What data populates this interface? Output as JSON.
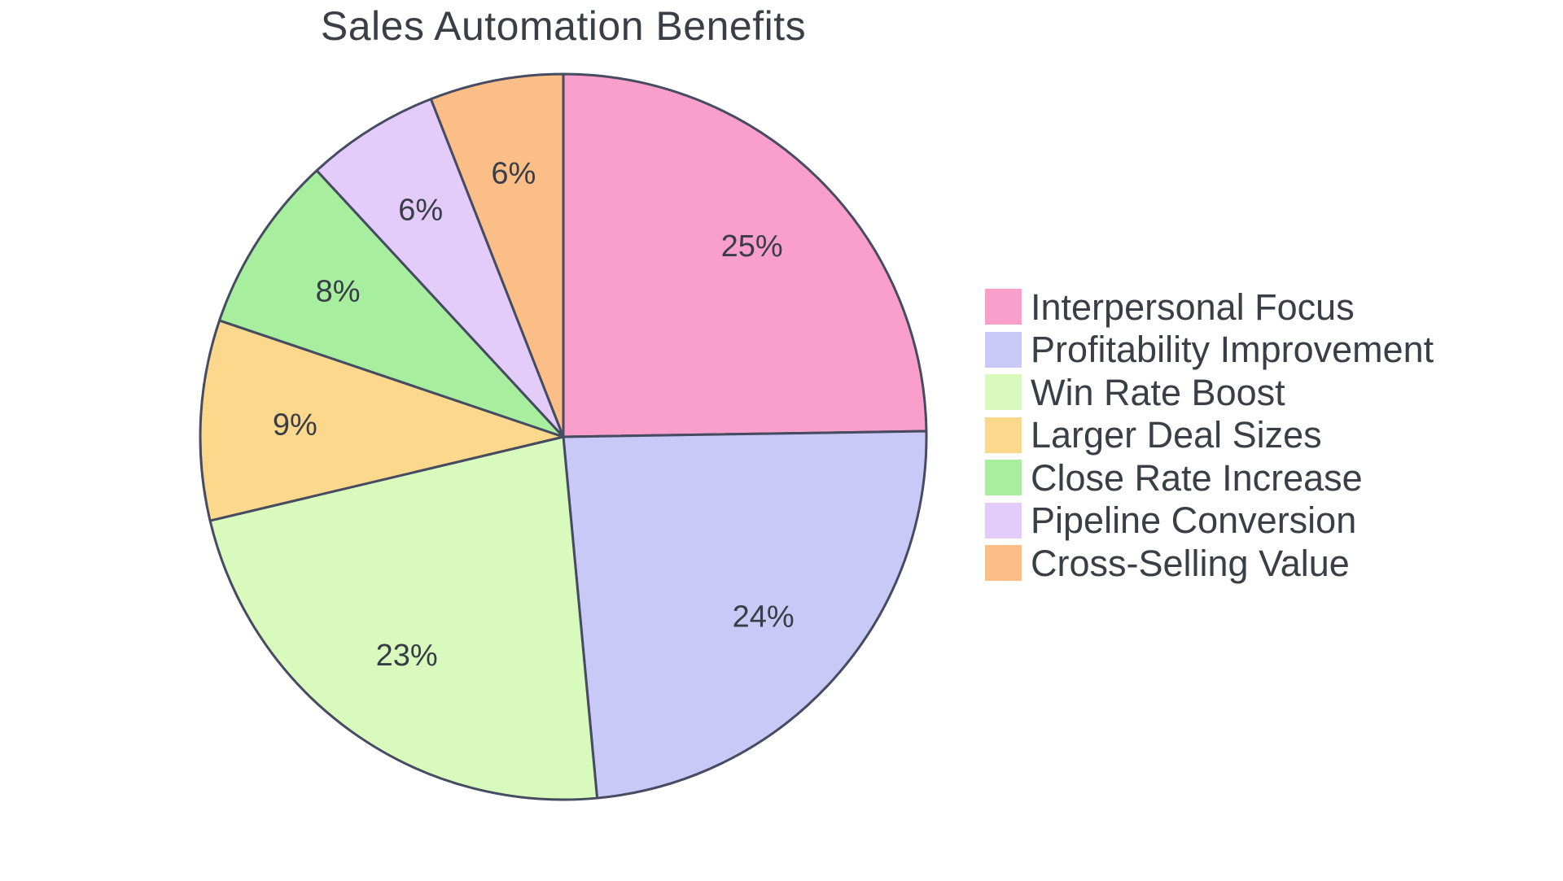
{
  "colors": {
    "background": "#FFFFFF",
    "slice_border": "#464B61",
    "title_text": "#3A3E46",
    "percent_label_text": "#383D47",
    "legend_text": "#3A3E46"
  },
  "chart_data": {
    "type": "pie",
    "title": "Sales Automation Benefits",
    "direction": "clockwise",
    "start_angle": "top",
    "legend_position": "right",
    "grid": false,
    "slices": [
      {
        "label": "Interpersonal Focus",
        "value": 25,
        "percent_label": "25%",
        "color": "#FA9FCC"
      },
      {
        "label": "Profitability Improvement",
        "value": 24,
        "percent_label": "24%",
        "color": "#C8C9F7"
      },
      {
        "label": "Win Rate Boost",
        "value": 23,
        "percent_label": "23%",
        "color": "#D8FABC"
      },
      {
        "label": "Larger Deal Sizes",
        "value": 9,
        "percent_label": "9%",
        "color": "#FCD88D"
      },
      {
        "label": "Close Rate Increase",
        "value": 8,
        "percent_label": "8%",
        "color": "#A8EE9F"
      },
      {
        "label": "Pipeline Conversion",
        "value": 6,
        "percent_label": "6%",
        "color": "#E3CCFA"
      },
      {
        "label": "Cross-Selling Value",
        "value": 6,
        "percent_label": "6%",
        "color": "#FBBE87"
      }
    ]
  }
}
